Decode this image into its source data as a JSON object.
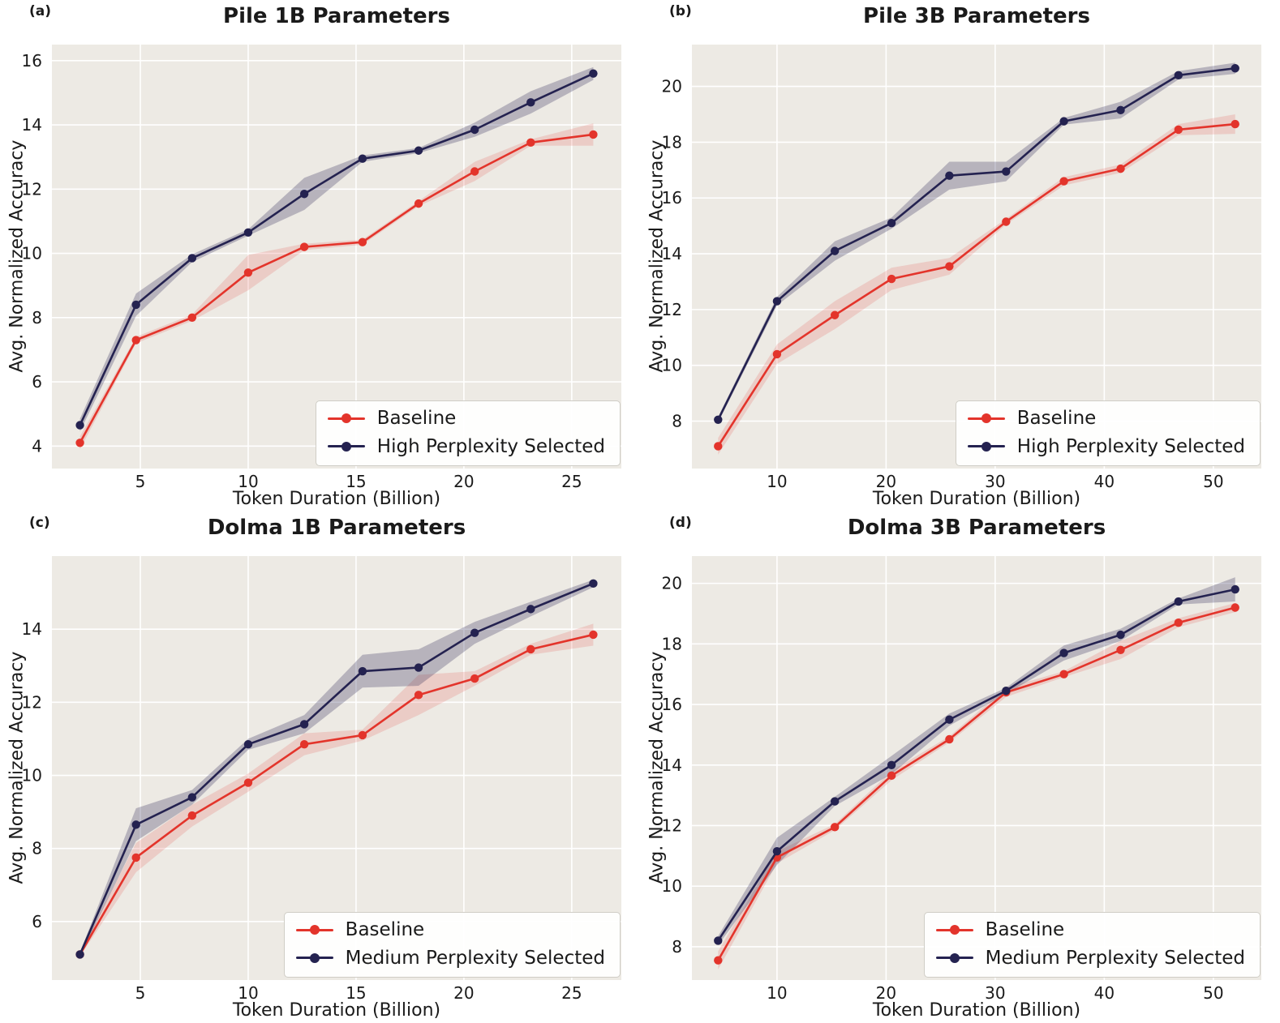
{
  "style": {
    "figure_bg": "#ffffff",
    "axes_bg": "#edeae4",
    "grid_color": "#ffffff",
    "text_color": "#1a1a1a",
    "legend_bg": "#fefefe",
    "legend_border": "#cfcdc6",
    "baseline_color": "#e3342b",
    "selected_color": "#242250"
  },
  "chart_data": [
    {
      "type": "line",
      "panel_label": "(a)",
      "title": "Pile 1B Parameters",
      "xlabel": "Token Duration (Billion)",
      "ylabel": "Avg. Normalized Accuracy",
      "xlim": [
        0.9,
        27.3
      ],
      "ylim": [
        3.3,
        16.5
      ],
      "xticks": [
        5,
        10,
        15,
        20,
        25
      ],
      "yticks": [
        4,
        6,
        8,
        10,
        12,
        14,
        16
      ],
      "grid": true,
      "legend_position": "lower right",
      "x": [
        2.2,
        4.8,
        7.4,
        10.0,
        12.6,
        15.3,
        17.9,
        20.5,
        23.1,
        26.0
      ],
      "series": [
        {
          "name": "Baseline",
          "color": "#e3342b",
          "band_opacity": 0.16,
          "values": [
            4.1,
            7.3,
            8.0,
            9.4,
            10.2,
            10.35,
            11.55,
            12.55,
            13.45,
            13.7
          ],
          "err": [
            0.2,
            0.1,
            0.1,
            0.55,
            0.1,
            0.08,
            0.08,
            0.3,
            0.1,
            0.35
          ]
        },
        {
          "name": "High Perplexity Selected",
          "color": "#242250",
          "band_opacity": 0.27,
          "values": [
            4.65,
            8.4,
            9.85,
            10.65,
            11.85,
            12.95,
            13.2,
            13.85,
            14.7,
            15.6
          ],
          "err": [
            0.2,
            0.35,
            0.12,
            0.1,
            0.5,
            0.1,
            0.08,
            0.22,
            0.35,
            0.2
          ]
        }
      ]
    },
    {
      "type": "line",
      "panel_label": "(b)",
      "title": "Pile 3B Parameters",
      "xlabel": "Token Duration (Billion)",
      "ylabel": "Avg. Normalized Accuracy",
      "xlim": [
        2.2,
        54.4
      ],
      "ylim": [
        6.3,
        21.5
      ],
      "xticks": [
        10,
        20,
        30,
        40,
        50
      ],
      "yticks": [
        8,
        10,
        12,
        14,
        16,
        18,
        20
      ],
      "grid": true,
      "legend_position": "lower right",
      "x": [
        4.6,
        10.0,
        15.3,
        20.5,
        25.8,
        31.0,
        36.3,
        41.5,
        46.8,
        52.0
      ],
      "series": [
        {
          "name": "Baseline",
          "color": "#e3342b",
          "band_opacity": 0.16,
          "values": [
            7.1,
            10.4,
            11.8,
            13.1,
            13.55,
            15.15,
            16.6,
            17.05,
            18.45,
            18.65
          ],
          "err": [
            0.3,
            0.35,
            0.5,
            0.4,
            0.3,
            0.1,
            0.15,
            0.15,
            0.2,
            0.35
          ]
        },
        {
          "name": "High Perplexity Selected",
          "color": "#242250",
          "band_opacity": 0.27,
          "values": [
            8.05,
            12.3,
            14.1,
            15.1,
            16.8,
            16.95,
            18.75,
            19.15,
            20.4,
            20.65
          ],
          "err": [
            0.1,
            0.15,
            0.35,
            0.2,
            0.5,
            0.35,
            0.12,
            0.3,
            0.15,
            0.2
          ]
        }
      ]
    },
    {
      "type": "line",
      "panel_label": "(c)",
      "title": "Dolma 1B Parameters",
      "xlabel": "Token Duration (Billion)",
      "ylabel": "Avg. Normalized Accuracy",
      "xlim": [
        0.9,
        27.3
      ],
      "ylim": [
        4.4,
        16.0
      ],
      "xticks": [
        5,
        10,
        15,
        20,
        25
      ],
      "yticks": [
        6,
        8,
        10,
        12,
        14
      ],
      "grid": true,
      "legend_position": "lower right",
      "x": [
        2.2,
        4.8,
        7.4,
        10.0,
        12.6,
        15.3,
        17.9,
        20.5,
        23.1,
        26.0
      ],
      "series": [
        {
          "name": "Baseline",
          "color": "#e3342b",
          "band_opacity": 0.16,
          "values": [
            5.1,
            7.75,
            8.9,
            9.8,
            10.85,
            11.1,
            12.2,
            12.65,
            13.45,
            13.85
          ],
          "err": [
            0.05,
            0.4,
            0.3,
            0.25,
            0.3,
            0.15,
            0.55,
            0.2,
            0.15,
            0.3
          ]
        },
        {
          "name": "Medium Perplexity Selected",
          "color": "#242250",
          "band_opacity": 0.27,
          "values": [
            5.1,
            8.65,
            9.4,
            10.85,
            11.4,
            12.85,
            12.95,
            13.9,
            14.55,
            15.25
          ],
          "err": [
            0.05,
            0.45,
            0.2,
            0.15,
            0.25,
            0.45,
            0.5,
            0.3,
            0.2,
            0.1
          ]
        }
      ]
    },
    {
      "type": "line",
      "panel_label": "(d)",
      "title": "Dolma 3B Parameters",
      "xlabel": "Token Duration (Billion)",
      "ylabel": "Avg. Normalized Accuracy",
      "xlim": [
        2.2,
        54.4
      ],
      "ylim": [
        6.9,
        20.9
      ],
      "xticks": [
        10,
        20,
        30,
        40,
        50
      ],
      "yticks": [
        8,
        10,
        12,
        14,
        16,
        18,
        20
      ],
      "grid": true,
      "legend_position": "lower right",
      "x": [
        4.6,
        10.0,
        15.3,
        20.5,
        25.8,
        31.0,
        36.3,
        41.5,
        46.8,
        52.0
      ],
      "series": [
        {
          "name": "Baseline",
          "color": "#e3342b",
          "band_opacity": 0.16,
          "values": [
            7.55,
            10.95,
            11.95,
            13.65,
            14.85,
            16.4,
            17.0,
            17.8,
            18.7,
            19.2
          ],
          "err": [
            0.3,
            0.2,
            0.1,
            0.15,
            0.1,
            0.15,
            0.1,
            0.3,
            0.15,
            0.15
          ]
        },
        {
          "name": "Medium Perplexity Selected",
          "color": "#242250",
          "band_opacity": 0.27,
          "values": [
            8.2,
            11.15,
            12.8,
            14.0,
            15.5,
            16.45,
            17.7,
            18.3,
            19.4,
            19.8
          ],
          "err": [
            0.15,
            0.45,
            0.15,
            0.3,
            0.2,
            0.1,
            0.25,
            0.2,
            0.1,
            0.4
          ]
        }
      ]
    }
  ]
}
